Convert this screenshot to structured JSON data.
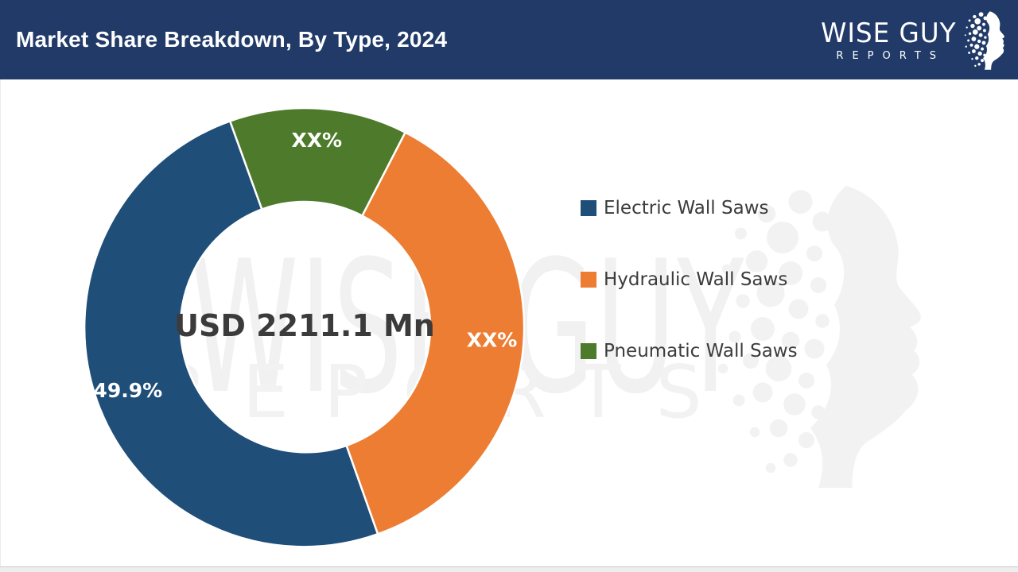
{
  "header": {
    "title": "Market Share Breakdown, By Type, 2024",
    "logo": {
      "brand_line1": "WISE GUY",
      "brand_line2": "REPORTS"
    }
  },
  "watermark": {
    "line1": "WISE GUY",
    "line2": "REPORTS"
  },
  "chart_data": {
    "type": "donut",
    "title": "Market Share Breakdown, By Type, 2024",
    "center_label": "USD 2211.1 Mn",
    "legend_position": "right",
    "slices": [
      {
        "label": "Electric Wall Saws",
        "value_pct": 49.9,
        "display_label": "49.9%",
        "color": "#1F4E79"
      },
      {
        "label": "Hydraulic Wall Saws",
        "value_pct": 37.0,
        "display_label": "XX%",
        "color": "#EC7D33"
      },
      {
        "label": "Pneumatic Wall Saws",
        "value_pct": 13.1,
        "display_label": "XX%",
        "color": "#4E7B2B"
      }
    ]
  }
}
